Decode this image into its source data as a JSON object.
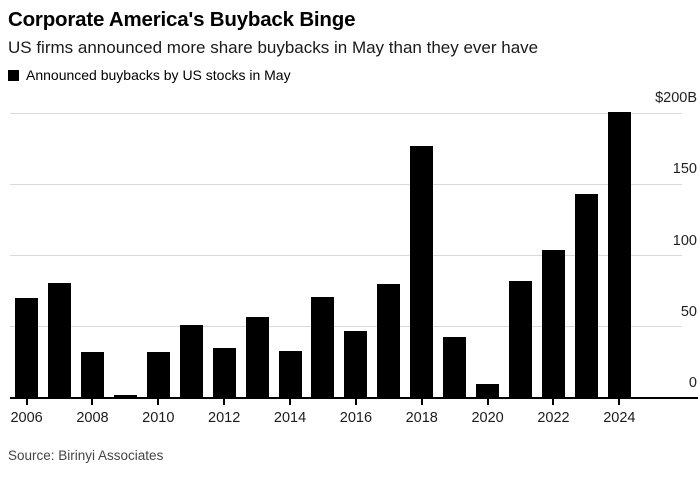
{
  "header": {
    "title": "Corporate America's Buyback Binge",
    "subtitle": "US firms announced more share buybacks in May than they ever have"
  },
  "legend": {
    "swatch_color": "#000000",
    "label": "Announced buybacks by US stocks in May"
  },
  "chart_data": {
    "type": "bar",
    "title": "Corporate America's Buyback Binge",
    "subtitle": "US firms announced more share buybacks in May than they ever have",
    "series_name": "Announced buybacks by US stocks in May",
    "categories": [
      2006,
      2007,
      2008,
      2009,
      2010,
      2011,
      2012,
      2013,
      2014,
      2015,
      2016,
      2017,
      2018,
      2019,
      2020,
      2021,
      2022,
      2023,
      2024
    ],
    "values": [
      70,
      81,
      32,
      2,
      32,
      51,
      35,
      57,
      33,
      71,
      47,
      80,
      177,
      43,
      10,
      82,
      104,
      143,
      201
    ],
    "unit": "billions USD",
    "xlabel": "",
    "ylabel": "",
    "ylim": [
      0,
      200
    ],
    "yticks": [
      {
        "label": "$200B",
        "value": 200
      },
      {
        "label": "150",
        "value": 150
      },
      {
        "label": "100",
        "value": 100
      },
      {
        "label": "50",
        "value": 50
      },
      {
        "label": "0",
        "value": 0
      }
    ],
    "xticks": [
      2006,
      2008,
      2010,
      2012,
      2014,
      2016,
      2018,
      2020,
      2022,
      2024
    ],
    "grid": "horizontal",
    "legend_position": "top-left",
    "bar_color": "#000000",
    "gridline_color": "#d9d9d9",
    "axis_color": "#000000"
  },
  "source": "Source: Birinyi Associates"
}
